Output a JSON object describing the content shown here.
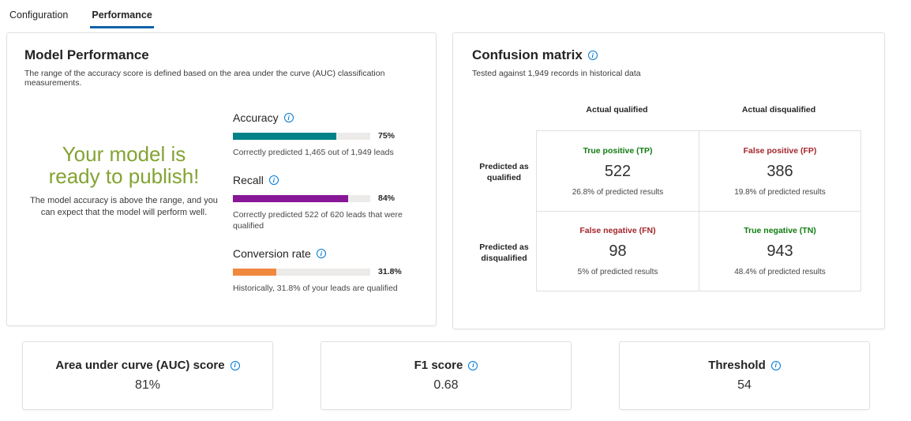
{
  "tabs": [
    {
      "label": "Configuration",
      "active": false
    },
    {
      "label": "Performance",
      "active": true
    }
  ],
  "icons": {
    "info": "i"
  },
  "colors": {
    "accent_blue": "#0c62a9",
    "status_green": "#84a333",
    "good_green": "#107C10",
    "bad_red": "#A4262C"
  },
  "model_performance": {
    "title": "Model Performance",
    "subtitle": "The range of the accuracy score is defined based on the area under the curve (AUC) classification measurements.",
    "status": {
      "headline_lines": [
        "Your model is",
        "ready to publish!"
      ],
      "description": "The model accuracy is above the range, and you can expect that the model will perform well."
    },
    "metrics": [
      {
        "label": "Accuracy",
        "value": "75%",
        "percent": 75,
        "color": "#038387",
        "description": "Correctly predicted 1,465 out of 1,949 leads"
      },
      {
        "label": "Recall",
        "value": "84%",
        "percent": 84,
        "color": "#881798",
        "description": "Correctly predicted 522 of 620 leads that were qualified"
      },
      {
        "label": "Conversion rate",
        "value": "31.8%",
        "percent": 31.8,
        "color": "#F0883E",
        "description": "Historically, 31.8% of your leads are qualified"
      }
    ]
  },
  "confusion_matrix": {
    "title": "Confusion matrix",
    "subtitle": "Tested against 1,949 records in historical data",
    "col_headers": [
      "Actual qualified",
      "Actual disqualified"
    ],
    "row_headers": [
      "Predicted as qualified",
      "Predicted as disqualified"
    ],
    "cells": [
      {
        "label": "True positive (TP)",
        "value": "522",
        "description": "26.8% of predicted results",
        "color": "#107C10"
      },
      {
        "label": "False positive (FP)",
        "value": "386",
        "description": "19.8% of predicted results",
        "color": "#A4262C"
      },
      {
        "label": "False negative (FN)",
        "value": "98",
        "description": "5% of predicted results",
        "color": "#A4262C"
      },
      {
        "label": "True negative (TN)",
        "value": "943",
        "description": "48.4% of predicted results",
        "color": "#107C10"
      }
    ]
  },
  "summary_cards": [
    {
      "label": "Area under curve (AUC) score",
      "value": "81%"
    },
    {
      "label": "F1 score",
      "value": "0.68"
    },
    {
      "label": "Threshold",
      "value": "54"
    }
  ]
}
